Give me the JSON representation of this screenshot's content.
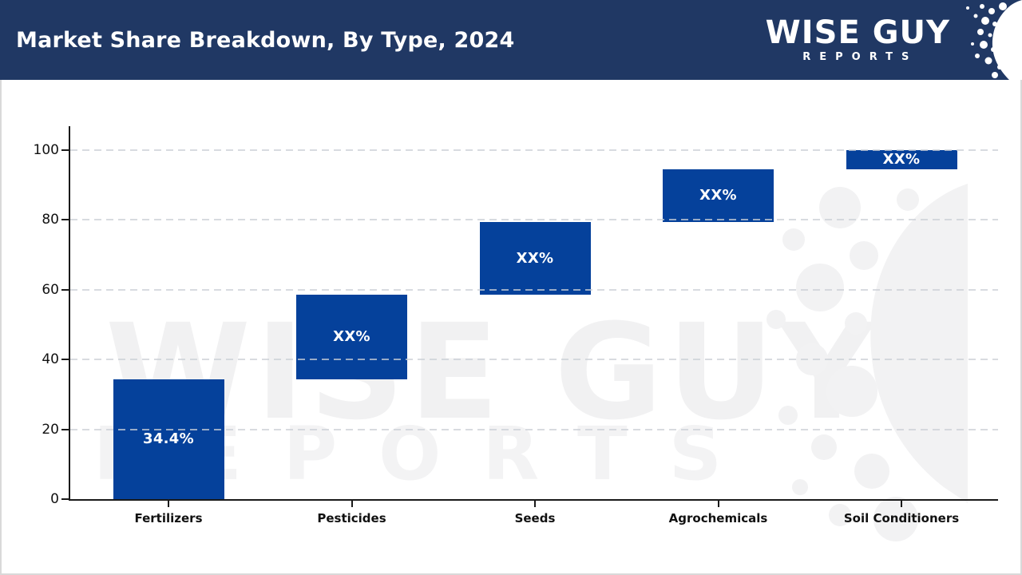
{
  "header": {
    "title": "Market Share Breakdown, By Type, 2024",
    "logo": {
      "line1": "WISE GUY",
      "line2": "REPORTS"
    }
  },
  "watermark": {
    "line1": "WISE GUY",
    "line2": "REPORTS"
  },
  "colors": {
    "header_bg": "#203864",
    "bar_blue": "#05419b",
    "grid_gray": "#dfe1e5",
    "axis_black": "#1a1a1a",
    "watermark_gray": "#f1f1f2",
    "bar_label_white": "#ffffff"
  },
  "chart_data": {
    "type": "bar",
    "subtype": "waterfall",
    "title": "Market Share Breakdown, By Type, 2024",
    "categories": [
      "Fertilizers",
      "Pesticides",
      "Seeds",
      "Agrochemicals",
      "Soil Conditioners"
    ],
    "segments": [
      {
        "category": "Fertilizers",
        "start": 0,
        "end": 34.4,
        "label": "34.4%"
      },
      {
        "category": "Pesticides",
        "start": 34.4,
        "end": 58.5,
        "label": "XX%"
      },
      {
        "category": "Seeds",
        "start": 58.5,
        "end": 79.4,
        "label": "XX%"
      },
      {
        "category": "Agrochemicals",
        "start": 79.4,
        "end": 94.4,
        "label": "XX%"
      },
      {
        "category": "Soil Conditioners",
        "start": 94.4,
        "end": 100,
        "label": "XX%"
      }
    ],
    "values_shown": [
      "34.4%",
      "XX%",
      "XX%",
      "XX%",
      "XX%"
    ],
    "yticks": [
      0,
      20,
      40,
      60,
      80,
      100
    ],
    "ylim": [
      0,
      106
    ],
    "xlabel": "",
    "ylabel": "",
    "grid": "horizontal-dashed",
    "legend": "none"
  }
}
